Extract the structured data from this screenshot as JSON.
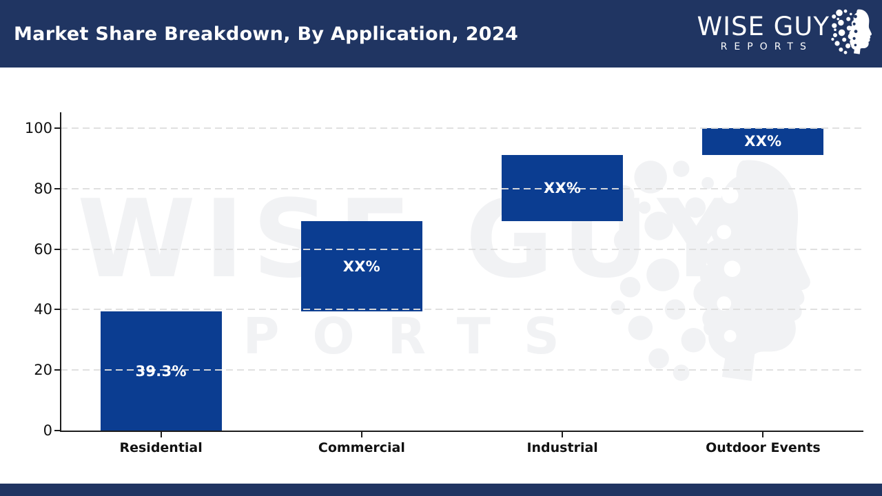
{
  "header": {
    "title": "Market Share Breakdown, By Application, 2024",
    "logo": {
      "name": "WISE GUY",
      "subtitle": "REPORTS"
    }
  },
  "watermark": {
    "line1": "WISE GUY",
    "line2": "REPORTS"
  },
  "chart_data": {
    "type": "bar",
    "subtype": "waterfall",
    "title": "Market Share Breakdown, By Application, 2024",
    "categories": [
      "Residential",
      "Commercial",
      "Industrial",
      "Outdoor Events"
    ],
    "segments": [
      {
        "category": "Residential",
        "start": 0,
        "end": 39.3,
        "label": "39.3%"
      },
      {
        "category": "Commercial",
        "start": 39.3,
        "end": 69.2,
        "label": "XX%"
      },
      {
        "category": "Industrial",
        "start": 69.2,
        "end": 91.2,
        "label": "XX%"
      },
      {
        "category": "Outdoor Events",
        "start": 91.2,
        "end": 100,
        "label": "XX%"
      }
    ],
    "y_ticks": [
      0,
      20,
      40,
      60,
      80,
      100
    ],
    "ylim": [
      0,
      105
    ],
    "xlabel": "",
    "ylabel": "",
    "grid": "horizontal-dashed-over-bars",
    "legend": "none",
    "bar_color": "#0b3d91",
    "bar_label_color": "#ffffff"
  },
  "colors": {
    "header_bg": "#203562",
    "footer_bg": "#203562",
    "bar": "#0b3d91",
    "grid": "#dedede",
    "axis": "#1c1c1c",
    "watermark": "#f1f2f4"
  }
}
